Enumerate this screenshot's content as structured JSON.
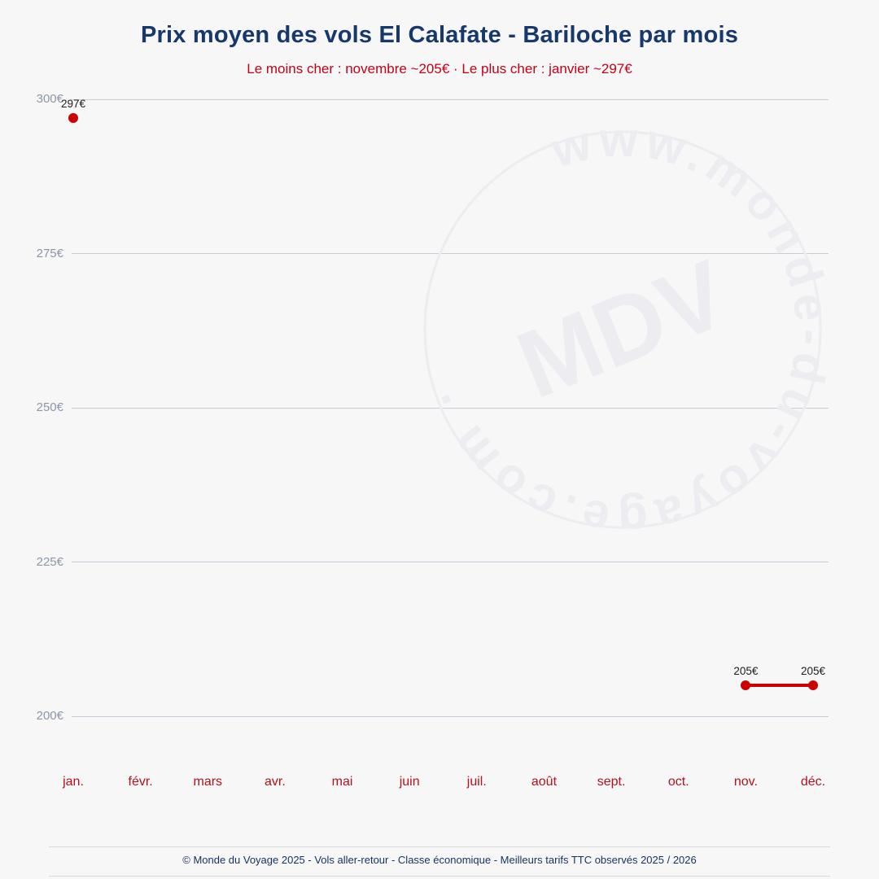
{
  "page": {
    "title": "Prix moyen des vols El Calafate - Bariloche par mois",
    "subtitle": "Le moins cher : novembre ~205€ · Le plus cher : janvier ~297€",
    "footer": "© Monde du Voyage 2025 - Vols aller-retour - Classe économique - Meilleurs tarifs TTC observés 2025 / 2026",
    "watermark": {
      "ring_text": "www.monde-du-voyage.com ·",
      "center_text": "MDV"
    }
  },
  "chart_data": {
    "type": "scatter",
    "title": "Prix moyen des vols El Calafate - Bariloche par mois",
    "categories": [
      "jan.",
      "févr.",
      "mars",
      "avr.",
      "mai",
      "juin",
      "juil.",
      "août",
      "sept.",
      "oct.",
      "nov.",
      "déc."
    ],
    "values": [
      297,
      null,
      null,
      null,
      null,
      null,
      null,
      null,
      null,
      null,
      205,
      205
    ],
    "value_labels": [
      "297€",
      null,
      null,
      null,
      null,
      null,
      null,
      null,
      null,
      null,
      "205€",
      "205€"
    ],
    "ylim": [
      200,
      300
    ],
    "yticks": [
      300,
      275,
      250,
      225,
      200
    ],
    "ytick_labels": [
      "300€",
      "275€",
      "250€",
      "225€",
      "200€"
    ],
    "unit": "€",
    "grid": true,
    "legend": "none",
    "colors": {
      "point": "#cc0000",
      "line": "#cc0000",
      "grid_line": "#c7ccda",
      "ytick_label": "#8d96a8",
      "month_label": "#b5101f",
      "title": "#16386b",
      "subtitle": "#c40016"
    }
  }
}
